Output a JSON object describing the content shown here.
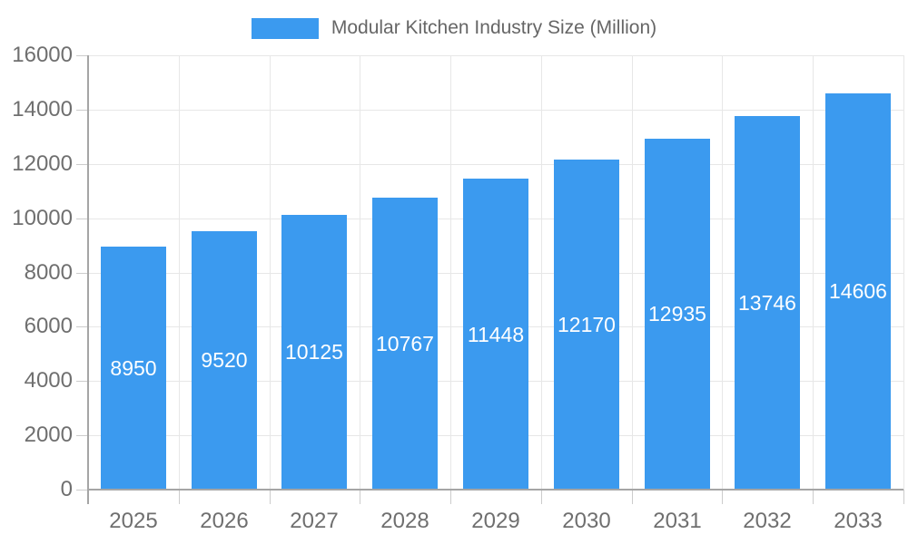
{
  "chart_data": {
    "type": "bar",
    "title": "Modular Kitchen Industry Size (Million)",
    "categories": [
      "2025",
      "2026",
      "2027",
      "2028",
      "2029",
      "2030",
      "2031",
      "2032",
      "2033"
    ],
    "series": [
      {
        "name": "Modular Kitchen Industry Size (Million)",
        "values": [
          8950,
          9520,
          10125,
          10767,
          11448,
          12170,
          12935,
          13746,
          14606
        ]
      }
    ],
    "ylim": [
      0,
      16000
    ],
    "ytick_step": 2000,
    "ytick_labels": [
      "0",
      "2000",
      "4000",
      "6000",
      "8000",
      "10000",
      "12000",
      "14000",
      "16000"
    ],
    "grid": true,
    "legend_position": "top",
    "data_labels": "inside-middle-white"
  },
  "colors": {
    "bar": "#3b9aef",
    "grid": "#e7e7e7",
    "tick": "#cccccc",
    "axis": "#a5a5a5",
    "axis_label": "#6f6f6f",
    "legend_text": "#666666",
    "value_label": "#ffffff",
    "background": "#ffffff"
  }
}
